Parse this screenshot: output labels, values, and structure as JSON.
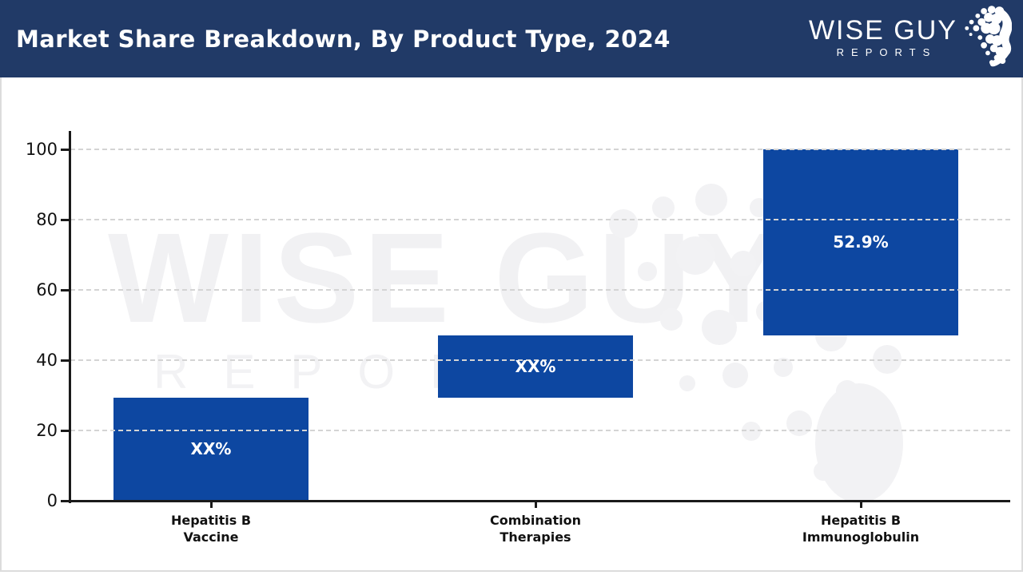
{
  "header": {
    "title": "Market Share Breakdown, By Product Type, 2024",
    "logo_line1": "WISE GUY",
    "logo_line2": "REPORTS"
  },
  "watermark": {
    "line1": "WISE GUY",
    "line2": "REPORTS"
  },
  "colors": {
    "header_bg": "#213a67",
    "bar": "#0d47a1",
    "axis": "#1a1a1a",
    "grid": "#d4d4d4",
    "watermark": "#f1f1f3"
  },
  "chart_data": {
    "type": "bar",
    "subtype": "waterfall",
    "title": "Market Share Breakdown, By Product Type, 2024",
    "categories": [
      "Hepatitis B\nVaccine",
      "Combination\nTherapies",
      "Hepatitis B\nImmunoglobulin"
    ],
    "bars": [
      {
        "category": "Hepatitis B Vaccine",
        "start": 0,
        "end": 29.4,
        "value": 29.4,
        "label": "XX%"
      },
      {
        "category": "Combination Therapies",
        "start": 29.4,
        "end": 47.1,
        "value": 17.7,
        "label": "XX%"
      },
      {
        "category": "Hepatitis B Immunoglobulin",
        "start": 47.1,
        "end": 100,
        "value": 52.9,
        "label": "52.9%"
      }
    ],
    "bar_color": "#0d47a1",
    "yticks": [
      0,
      20,
      40,
      60,
      80,
      100
    ],
    "ylim": [
      0,
      105
    ],
    "xlabel": "",
    "ylabel": "",
    "grid": "horizontal-dashed",
    "legend_position": "none"
  }
}
